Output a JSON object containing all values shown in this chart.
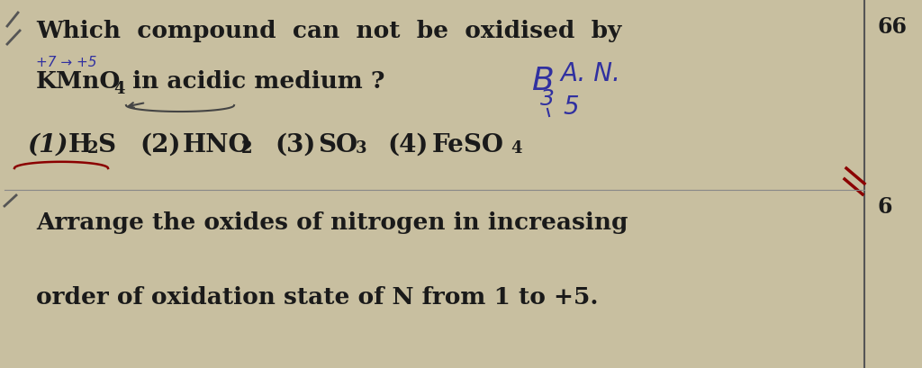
{
  "page_bg": "#c8bfa0",
  "dark": "#1a1a1a",
  "blue": "#3030a0",
  "red_mark": "#8B0000",
  "line1": "Which  compound  can  not  be  oxidised  by",
  "kmno4_main": "KMnO",
  "kmno4_sub": "4",
  "kmno4_rest": " in acidic medium ?",
  "annot_kmno4": "+7 → +5",
  "ban_b": "B",
  "ban_an": "A. N.",
  "ban_3": "3",
  "ban_5": "5",
  "opt1_pre": "(1)",
  "opt1_h": "H",
  "opt1_2": "2",
  "opt1_s": "S",
  "opt2_pre": "(2)",
  "opt2_hno": "HNO",
  "opt2_2": "2",
  "opt3_pre": "(3)",
  "opt3_so": "SO",
  "opt3_3": "3",
  "opt4_pre": "(4)",
  "opt4_feso": "FeSO",
  "opt4_4": "4",
  "bottom1": "Arrange the oxides of nitrogen in increasing",
  "bottom2": "order of oxidation state of N from 1 to +5.",
  "num66": "66",
  "num6": "6",
  "figwidth": 10.24,
  "figheight": 4.1,
  "dpi": 100
}
